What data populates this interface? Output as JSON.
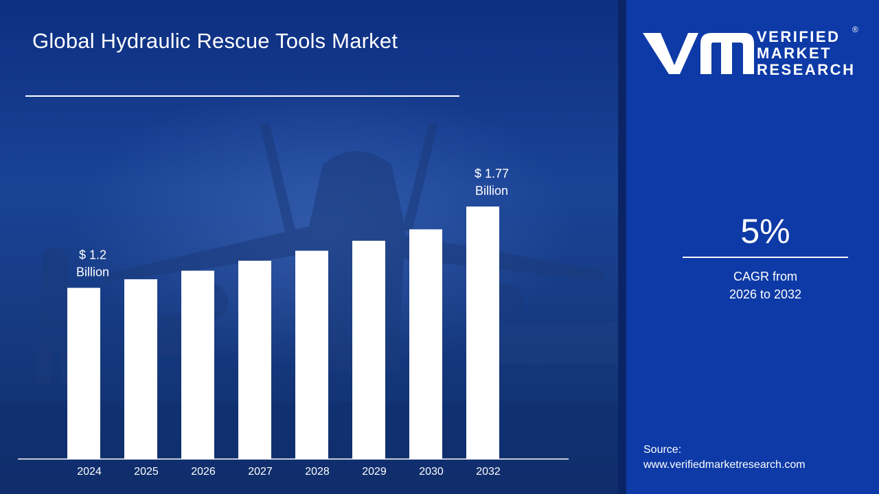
{
  "chart_data": {
    "type": "bar",
    "title": "Global Hydraulic Rescue Tools Market",
    "categories": [
      "2024",
      "2025",
      "2026",
      "2027",
      "2028",
      "2029",
      "2030",
      "2032"
    ],
    "values": [
      1.2,
      1.26,
      1.32,
      1.39,
      1.46,
      1.53,
      1.61,
      1.77
    ],
    "units": "USD Billion",
    "annotations": [
      {
        "category": "2024",
        "line1": "$ 1.2",
        "line2": "Billion"
      },
      {
        "category": "2032",
        "line1": "$ 1.77",
        "line2": "Billion"
      }
    ],
    "bar_color": "#ffffff",
    "grid": false,
    "legend": "none"
  },
  "brand": {
    "line1": "VERIFIED",
    "line2": "MARKET",
    "line3": "RESEARCH",
    "registered": "®"
  },
  "cagr": {
    "value": "5%",
    "caption_line1": "CAGR from",
    "caption_line2": "2026 to 2032"
  },
  "source": {
    "label": "Source:",
    "url": "www.verifiedmarketresearch.com"
  },
  "colors": {
    "panel": "#0d3aa6",
    "background": "#1a4395",
    "bars": "#ffffff"
  }
}
